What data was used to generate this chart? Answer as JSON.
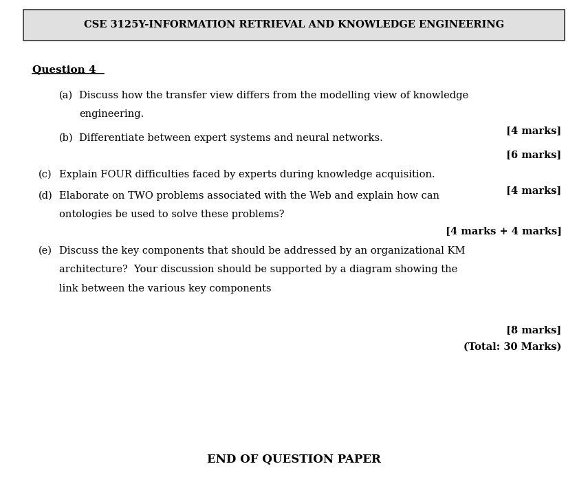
{
  "header": "CSE 3125Y-INFORMATION RETRIEVAL AND KNOWLEDGE ENGINEERING",
  "question_label": "Question 4",
  "bg_color": "#ffffff",
  "text_color": "#000000",
  "header_bg": "#e0e0e0",
  "font_family": "serif",
  "items": [
    {
      "label": "(a)",
      "line1": "Discuss how the transfer view differs from the modelling view of knowledge",
      "line2": "engineering.",
      "marks": "[4 marks]"
    },
    {
      "label": "(b)",
      "line1": "Differentiate between expert systems and neural networks.",
      "line2": "",
      "marks": "[6 marks]"
    },
    {
      "label": "(c)",
      "line1": "Explain FOUR difficulties faced by experts during knowledge acquisition.",
      "line2": "",
      "marks": "[4 marks]"
    },
    {
      "label": "(d)",
      "line1": "Elaborate on TWO problems associated with the Web and explain how can",
      "line2": "ontologies be used to solve these problems?",
      "marks": "[4 marks + 4 marks]"
    },
    {
      "label": "(e)",
      "line1": "Discuss the key components that should be addressed by an organizational KM",
      "line2": "architecture?  Your discussion should be supported by a diagram showing the",
      "line3": "link between the various key components",
      "marks": ""
    }
  ],
  "bottom_marks_line1": "[8 marks]",
  "bottom_marks_line2": "(Total: 30 Marks)",
  "footer": "END OF QUESTION PAPER"
}
